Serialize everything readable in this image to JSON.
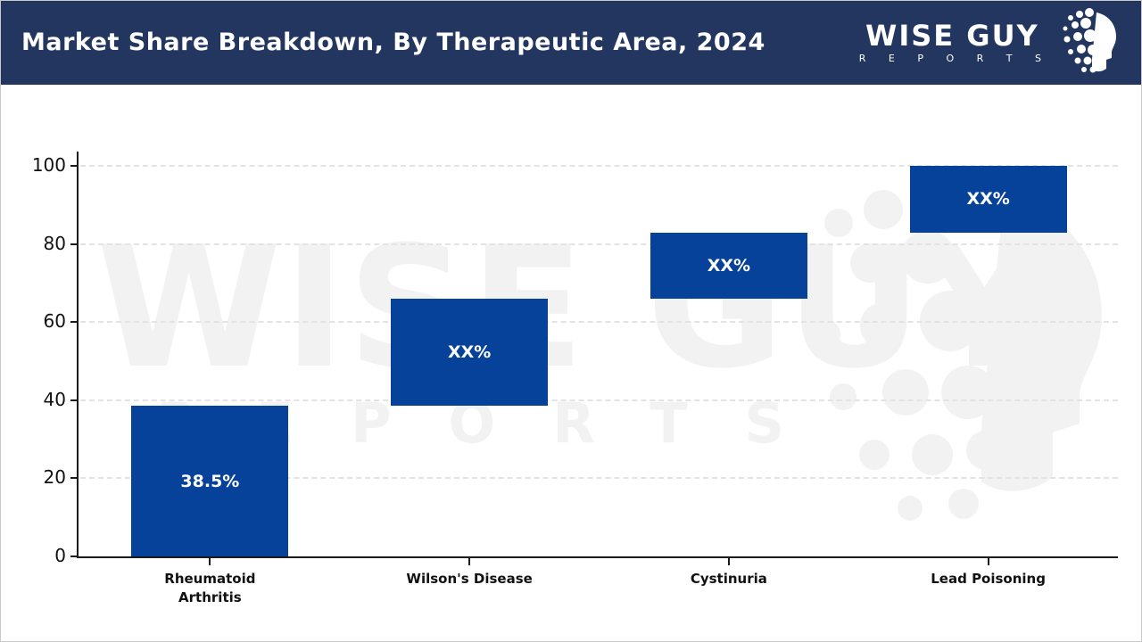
{
  "header": {
    "title": "Market Share Breakdown, By Therapeutic Area, 2024",
    "background_color": "#22365f",
    "logo": {
      "line1": "WISE GUY",
      "line2": "R E P O R T S"
    }
  },
  "watermark": {
    "line1": "WISE GUY",
    "line2": "REPORTS"
  },
  "chart_data": {
    "type": "bar",
    "variant": "waterfall",
    "title": "Market Share Breakdown, By Therapeutic Area, 2024",
    "categories": [
      "Rheumatoid\nArthritis",
      "Wilson's Disease",
      "Cystinuria",
      "Lead Poisoning"
    ],
    "segments": [
      {
        "category": "Rheumatoid Arthritis",
        "start": 0,
        "end": 38.5,
        "label": "38.5%"
      },
      {
        "category": "Wilson's Disease",
        "start": 38.5,
        "end": 66,
        "label": "XX%"
      },
      {
        "category": "Cystinuria",
        "start": 66,
        "end": 83,
        "label": "XX%"
      },
      {
        "category": "Lead Poisoning",
        "start": 83,
        "end": 100,
        "label": "XX%"
      }
    ],
    "yticks": [
      0,
      20,
      40,
      60,
      80,
      100
    ],
    "ylim": [
      0,
      105
    ],
    "xlabel": "",
    "ylabel": "",
    "legend": "none",
    "grid": "horizontal-dashed",
    "bar_color": "#06419a",
    "axis_color": "#1a1a1a",
    "grid_color": "#e3e3e3",
    "watermark_color": "#f2f2f2"
  }
}
